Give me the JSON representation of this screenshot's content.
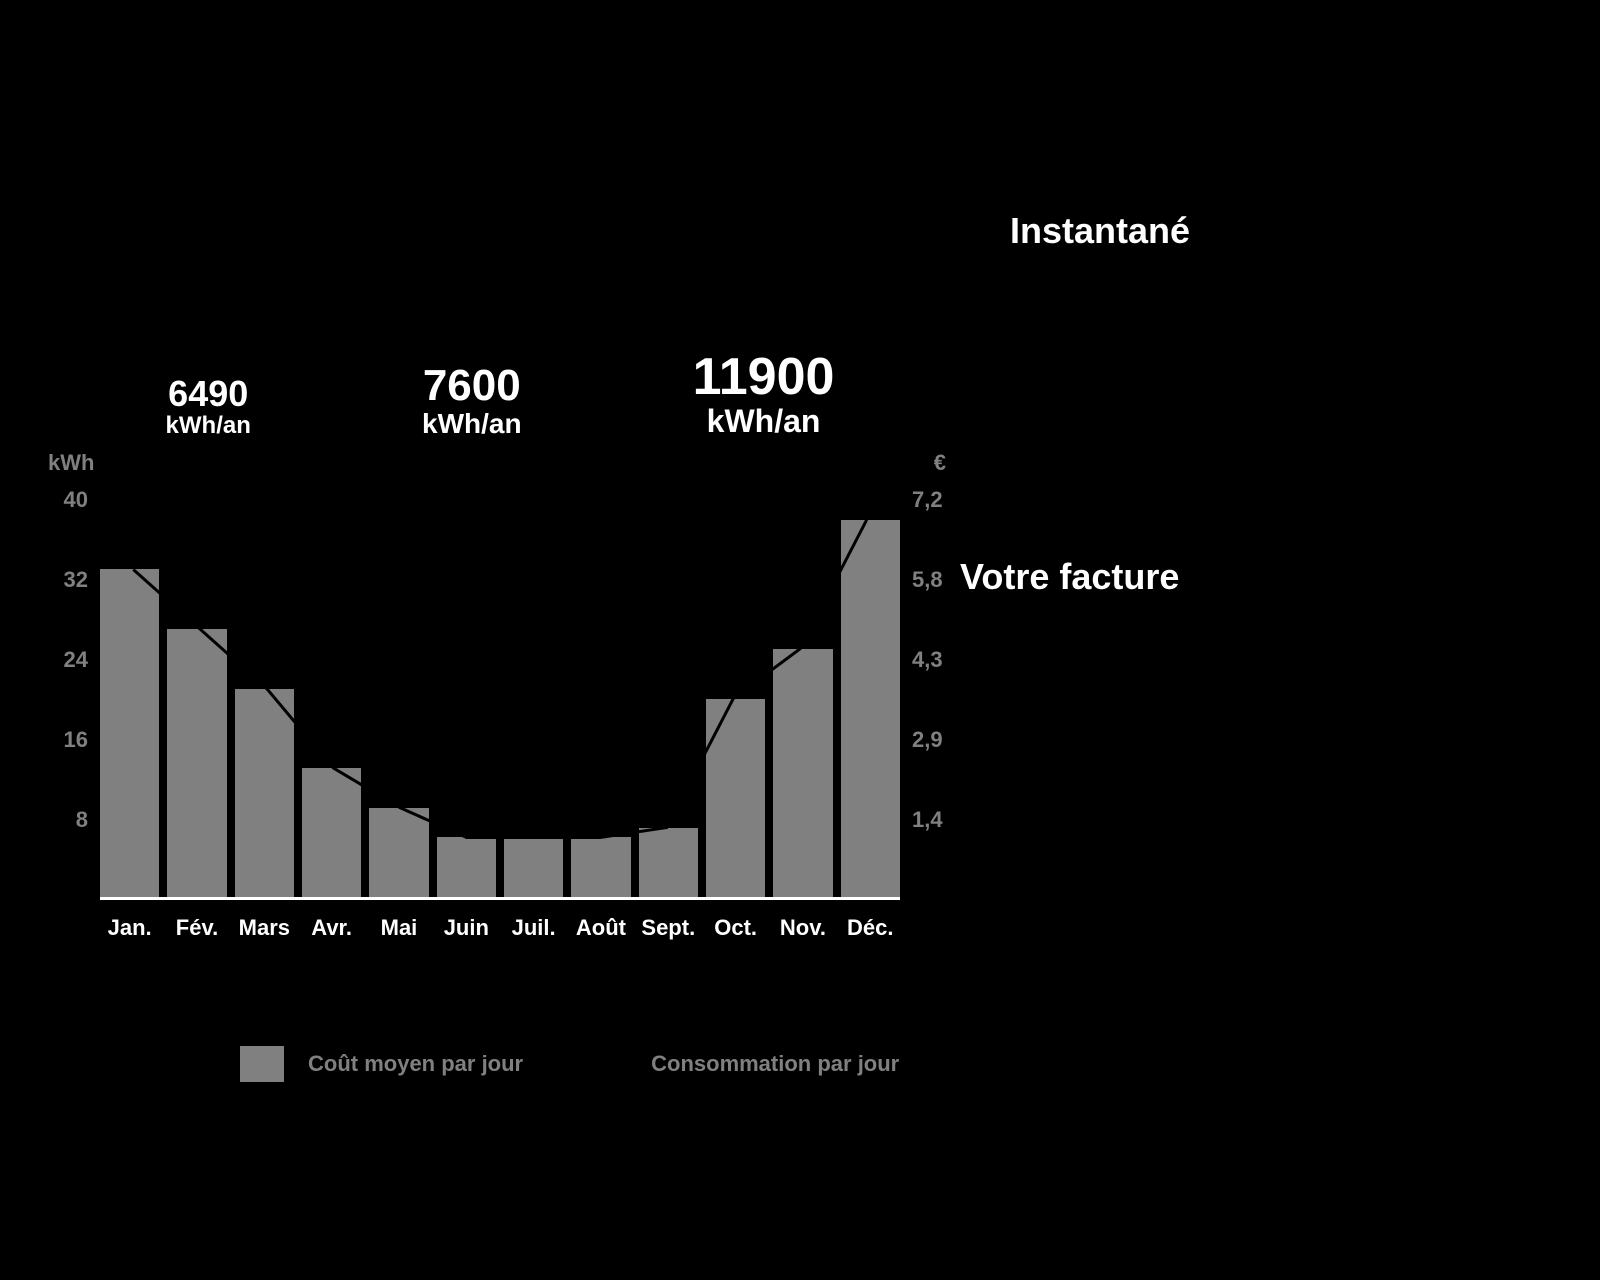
{
  "side_labels": {
    "top_right": "Instantané",
    "mid_right": "Votre facture"
  },
  "stats": [
    {
      "value": "6490",
      "unit": "kWh/an",
      "value_fontsize": 36,
      "unit_fontsize": 24
    },
    {
      "value": "7600",
      "unit": "kWh/an",
      "value_fontsize": 44,
      "unit_fontsize": 28
    },
    {
      "value": "11900",
      "unit": "kWh/an",
      "value_fontsize": 52,
      "unit_fontsize": 32
    }
  ],
  "chart": {
    "type": "bar+line",
    "left_axis": {
      "label": "kWh",
      "ticks": [
        8,
        16,
        24,
        32,
        40
      ],
      "min": 0,
      "max": 40
    },
    "right_axis": {
      "label": "€",
      "ticks": [
        "1,4",
        "2,9",
        "4,3",
        "5,8",
        "7,2"
      ]
    },
    "categories": [
      "Jan.",
      "Fév.",
      "Mars",
      "Avr.",
      "Mai",
      "Juin",
      "Juil.",
      "Août",
      "Sept.",
      "Oct.",
      "Nov.",
      "Déc."
    ],
    "bar_values": [
      33,
      27,
      21,
      13,
      9,
      6,
      6,
      6,
      7,
      20,
      25,
      38
    ],
    "line_values": [
      33,
      27,
      21,
      13,
      9,
      6,
      6,
      6,
      7,
      20,
      25,
      38
    ],
    "bar_color": "#808080",
    "line_color": "#000000",
    "line_width": 3,
    "axis_text_color": "#808080",
    "xtick_text_color": "#ffffff",
    "background_color": "#000000",
    "baseline_color": "#ffffff",
    "legend": {
      "swatch_color": "#808080",
      "bar_label": "Coût moyen par jour",
      "line_label": "Consommation par jour"
    }
  }
}
